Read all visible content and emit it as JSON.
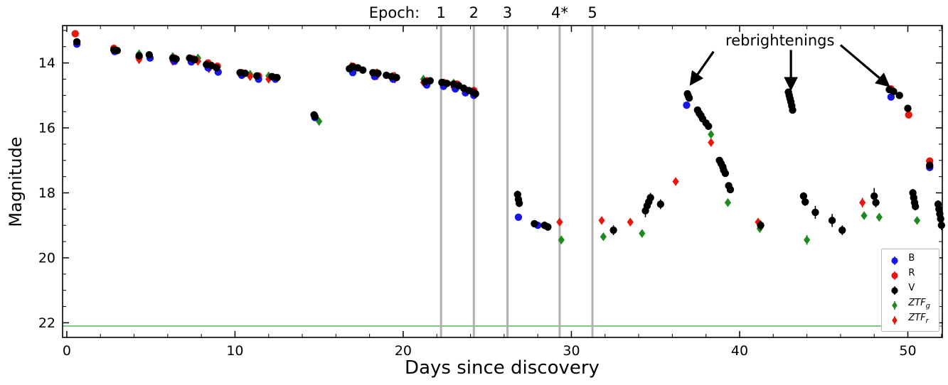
{
  "figure": {
    "xlabel": "Days since discovery",
    "ylabel": "Magnitude",
    "epoch_header": "Epoch:",
    "annotation_text": "rebrightenings"
  },
  "chart_data": {
    "type": "scatter",
    "title": "",
    "xlabel": "Days since discovery",
    "ylabel": "Magnitude",
    "grid": false,
    "legend_position": "lower right",
    "xlim": [
      -0.25,
      52.05
    ],
    "ylim": [
      12.85,
      22.45
    ],
    "y_axis_inverted": true,
    "xticks": [
      0,
      10,
      20,
      30,
      40,
      50
    ],
    "yticks": [
      14,
      16,
      18,
      20,
      22
    ],
    "x_minor_step": 2,
    "y_minor_step": 0.5,
    "epoch_line_color": "#b0b0b0",
    "epochs": [
      {
        "label": "1",
        "x": 22.25
      },
      {
        "label": "2",
        "x": 24.2
      },
      {
        "label": "3",
        "x": 26.2
      },
      {
        "label": "4*",
        "x": 29.3
      },
      {
        "label": "5",
        "x": 31.25
      }
    ],
    "hline": {
      "y": 22.1,
      "color": "#7ec87e"
    },
    "annotation": {
      "text": "rebrightenings",
      "x": 42.4,
      "y": 13.3,
      "arrows": [
        {
          "x1": 38.45,
          "y1": 13.65,
          "x2": 37.1,
          "y2": 14.65
        },
        {
          "x1": 43.05,
          "y1": 13.6,
          "x2": 43.05,
          "y2": 14.8
        },
        {
          "x1": 46.0,
          "y1": 13.45,
          "x2": 48.85,
          "y2": 14.7
        }
      ]
    },
    "series": [
      {
        "name": "ZTFg",
        "marker": "diamond",
        "color": "#1f8a1f",
        "points": [
          [
            4.3,
            13.72
          ],
          [
            6.3,
            13.8
          ],
          [
            7.8,
            13.85
          ],
          [
            8.45,
            14.05
          ],
          [
            10.9,
            14.35
          ],
          [
            12.0,
            14.4
          ],
          [
            15.0,
            15.8
          ],
          [
            16.9,
            14.1
          ],
          [
            18.45,
            14.3
          ],
          [
            19.5,
            14.4
          ],
          [
            21.2,
            14.5
          ],
          [
            23.0,
            14.62
          ],
          [
            29.4,
            19.45,
            0.12
          ],
          [
            31.9,
            19.35,
            0.1
          ],
          [
            34.2,
            19.25,
            0.1
          ],
          [
            38.3,
            16.2
          ],
          [
            39.3,
            18.3,
            0.12
          ],
          [
            41.2,
            19.1,
            0.1
          ],
          [
            44.0,
            19.45,
            0.15
          ],
          [
            47.4,
            18.7,
            0.1
          ],
          [
            48.3,
            18.75,
            0.12
          ],
          [
            50.55,
            18.85,
            0.1
          ]
        ]
      },
      {
        "name": "ZTFr",
        "marker": "diamond",
        "color": "#e8160c",
        "points": [
          [
            4.3,
            13.9
          ],
          [
            6.3,
            13.95
          ],
          [
            7.8,
            13.95
          ],
          [
            8.45,
            14.18
          ],
          [
            10.9,
            14.42
          ],
          [
            12.0,
            14.5
          ],
          [
            16.9,
            14.2
          ],
          [
            18.45,
            14.4
          ],
          [
            19.5,
            14.5
          ],
          [
            21.2,
            14.6
          ],
          [
            23.0,
            14.75
          ],
          [
            29.3,
            18.9
          ],
          [
            31.8,
            18.85
          ],
          [
            33.5,
            18.9
          ],
          [
            36.2,
            17.65
          ],
          [
            38.3,
            16.45
          ],
          [
            41.1,
            18.9
          ],
          [
            47.3,
            18.3,
            0.15
          ]
        ]
      },
      {
        "name": "R",
        "marker": "circle",
        "color": "#e8160c",
        "points": [
          [
            0.5,
            13.1
          ],
          [
            2.8,
            13.55
          ],
          [
            4.3,
            13.82
          ],
          [
            6.4,
            13.85
          ],
          [
            7.5,
            13.87
          ],
          [
            8.4,
            14.0
          ],
          [
            8.95,
            14.1
          ],
          [
            10.4,
            14.3
          ],
          [
            11.4,
            14.4
          ],
          [
            12.4,
            14.45
          ],
          [
            17.0,
            14.1
          ],
          [
            18.4,
            14.3
          ],
          [
            19.4,
            14.4
          ],
          [
            21.4,
            14.55
          ],
          [
            22.4,
            14.6
          ],
          [
            23.2,
            14.65
          ],
          [
            24.2,
            14.85
          ],
          [
            49.0,
            14.8
          ],
          [
            50.05,
            15.6
          ],
          [
            51.3,
            17.02
          ]
        ]
      },
      {
        "name": "B",
        "marker": "circle",
        "color": "#1616e8",
        "points": [
          [
            0.6,
            13.42
          ],
          [
            2.85,
            13.65
          ],
          [
            4.95,
            13.85
          ],
          [
            6.4,
            13.95
          ],
          [
            7.4,
            13.97
          ],
          [
            8.4,
            14.15
          ],
          [
            9.0,
            14.28
          ],
          [
            10.4,
            14.38
          ],
          [
            11.4,
            14.5
          ],
          [
            12.4,
            14.5
          ],
          [
            14.75,
            15.68
          ],
          [
            17.0,
            14.3
          ],
          [
            18.3,
            14.42
          ],
          [
            19.4,
            14.5
          ],
          [
            21.4,
            14.68
          ],
          [
            22.4,
            14.72
          ],
          [
            23.1,
            14.8
          ],
          [
            23.7,
            14.92
          ],
          [
            24.2,
            15.0
          ],
          [
            26.85,
            18.75,
            0.1
          ],
          [
            28.0,
            19.0,
            0.1
          ],
          [
            36.85,
            15.3
          ],
          [
            49.0,
            15.05
          ],
          [
            51.3,
            17.22
          ]
        ]
      },
      {
        "name": "V",
        "marker": "circle",
        "color": "#000000",
        "points": [
          [
            0.6,
            13.35
          ],
          [
            2.8,
            13.6
          ],
          [
            3.0,
            13.62
          ],
          [
            4.3,
            13.78
          ],
          [
            4.9,
            13.75
          ],
          [
            6.3,
            13.85
          ],
          [
            6.5,
            13.88
          ],
          [
            7.3,
            13.85
          ],
          [
            7.6,
            13.9
          ],
          [
            8.3,
            14.05
          ],
          [
            8.6,
            14.08
          ],
          [
            8.9,
            14.15
          ],
          [
            10.3,
            14.3
          ],
          [
            10.6,
            14.32
          ],
          [
            11.3,
            14.4
          ],
          [
            12.2,
            14.42
          ],
          [
            12.5,
            14.45
          ],
          [
            14.7,
            15.6
          ],
          [
            14.75,
            15.65
          ],
          [
            16.8,
            14.18
          ],
          [
            17.0,
            14.12
          ],
          [
            17.3,
            14.15
          ],
          [
            17.6,
            14.22
          ],
          [
            18.2,
            14.3
          ],
          [
            18.5,
            14.32
          ],
          [
            19.0,
            14.38
          ],
          [
            19.3,
            14.42
          ],
          [
            19.6,
            14.45
          ],
          [
            21.3,
            14.58
          ],
          [
            21.6,
            14.55
          ],
          [
            22.3,
            14.6
          ],
          [
            22.6,
            14.63
          ],
          [
            23.0,
            14.65
          ],
          [
            23.3,
            14.7
          ],
          [
            23.6,
            14.78
          ],
          [
            23.9,
            14.85
          ],
          [
            24.15,
            14.9
          ],
          [
            24.3,
            14.95
          ],
          [
            26.8,
            18.05,
            0.12
          ],
          [
            26.85,
            18.2,
            0.12
          ],
          [
            26.9,
            18.32,
            0.12
          ],
          [
            27.8,
            18.95,
            0.1
          ],
          [
            28.4,
            19.0,
            0.12
          ],
          [
            28.6,
            19.05,
            0.12
          ],
          [
            32.5,
            19.15,
            0.15
          ],
          [
            34.4,
            18.55,
            0.2
          ],
          [
            34.5,
            18.4,
            0.15
          ],
          [
            34.6,
            18.28,
            0.15
          ],
          [
            34.7,
            18.15,
            0.15
          ],
          [
            35.3,
            18.35,
            0.15
          ],
          [
            36.9,
            14.95
          ],
          [
            36.95,
            15.02
          ],
          [
            37.0,
            15.08
          ],
          [
            37.5,
            15.45
          ],
          [
            37.6,
            15.55
          ],
          [
            37.7,
            15.62
          ],
          [
            37.8,
            15.72
          ],
          [
            38.0,
            15.85
          ],
          [
            38.15,
            15.95
          ],
          [
            38.8,
            17.0
          ],
          [
            38.9,
            17.1
          ],
          [
            39.0,
            17.2
          ],
          [
            39.05,
            17.3
          ],
          [
            39.15,
            17.4
          ],
          [
            39.35,
            17.78,
            0.1
          ],
          [
            39.45,
            17.9,
            0.1
          ],
          [
            41.25,
            19.0,
            0.15
          ],
          [
            42.9,
            14.9
          ],
          [
            42.95,
            15.0
          ],
          [
            43.0,
            15.1
          ],
          [
            43.05,
            15.2
          ],
          [
            43.1,
            15.32
          ],
          [
            43.15,
            15.45
          ],
          [
            43.8,
            18.1,
            0.12
          ],
          [
            43.9,
            18.28,
            0.12
          ],
          [
            44.5,
            18.6,
            0.2
          ],
          [
            45.5,
            18.85,
            0.2
          ],
          [
            46.1,
            19.15,
            0.15
          ],
          [
            48.0,
            18.1,
            0.25
          ],
          [
            48.1,
            18.3,
            0.15
          ],
          [
            48.9,
            14.82
          ],
          [
            49.15,
            14.88
          ],
          [
            49.5,
            15.0
          ],
          [
            50.0,
            15.4
          ],
          [
            50.3,
            18.0,
            0.12
          ],
          [
            50.35,
            18.15,
            0.12
          ],
          [
            50.4,
            18.3,
            0.12
          ],
          [
            50.45,
            18.42,
            0.12
          ],
          [
            51.3,
            17.15
          ],
          [
            51.8,
            18.35,
            0.12
          ],
          [
            51.85,
            18.5,
            0.12
          ],
          [
            51.9,
            18.65,
            0.12
          ],
          [
            51.95,
            18.8,
            0.15
          ],
          [
            52.0,
            19.0,
            0.15
          ]
        ]
      }
    ]
  },
  "legend": {
    "items": [
      {
        "label": "B",
        "sub": "",
        "marker": "circle",
        "color": "#1616e8"
      },
      {
        "label": "R",
        "sub": "",
        "marker": "circle",
        "color": "#e8160c"
      },
      {
        "label": "V",
        "sub": "",
        "marker": "circle",
        "color": "#000000"
      },
      {
        "label": "ZTF",
        "sub": "g",
        "marker": "diamond",
        "color": "#1f8a1f"
      },
      {
        "label": "ZTF",
        "sub": "r",
        "marker": "diamond",
        "color": "#e8160c"
      }
    ]
  }
}
